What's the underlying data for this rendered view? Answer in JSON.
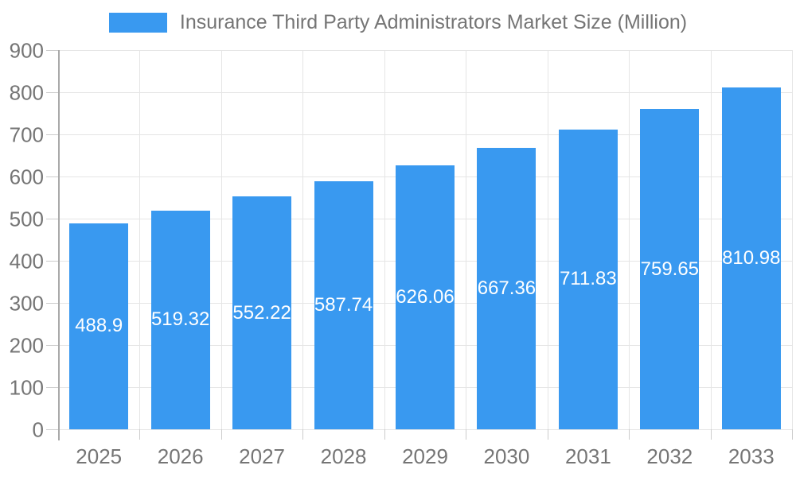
{
  "chart_data": {
    "type": "bar",
    "title": "Insurance Third Party Administrators Market Size (Million)",
    "categories": [
      "2025",
      "2026",
      "2027",
      "2028",
      "2029",
      "2030",
      "2031",
      "2032",
      "2033"
    ],
    "values": [
      488.9,
      519.32,
      552.22,
      587.74,
      626.06,
      667.36,
      711.83,
      759.65,
      810.98
    ],
    "value_labels": [
      "488.9",
      "519.32",
      "552.22",
      "587.74",
      "626.06",
      "667.36",
      "711.83",
      "759.65",
      "810.98"
    ],
    "xlabel": "",
    "ylabel": "",
    "ylim": [
      0,
      900
    ],
    "ytick_step": 100,
    "ytick_labels": [
      "0",
      "100",
      "200",
      "300",
      "400",
      "500",
      "600",
      "700",
      "800",
      "900"
    ],
    "grid": true,
    "legend_position": "top-center",
    "value_label_position": "inside-center"
  },
  "colors": {
    "bar": "#3999f0",
    "gridline": "#e5e5e5",
    "axis_line": "#a9a9a9",
    "tick": "#cccccc",
    "axis_text": "#757575",
    "value_text": "#ffffff",
    "background": "#ffffff"
  }
}
